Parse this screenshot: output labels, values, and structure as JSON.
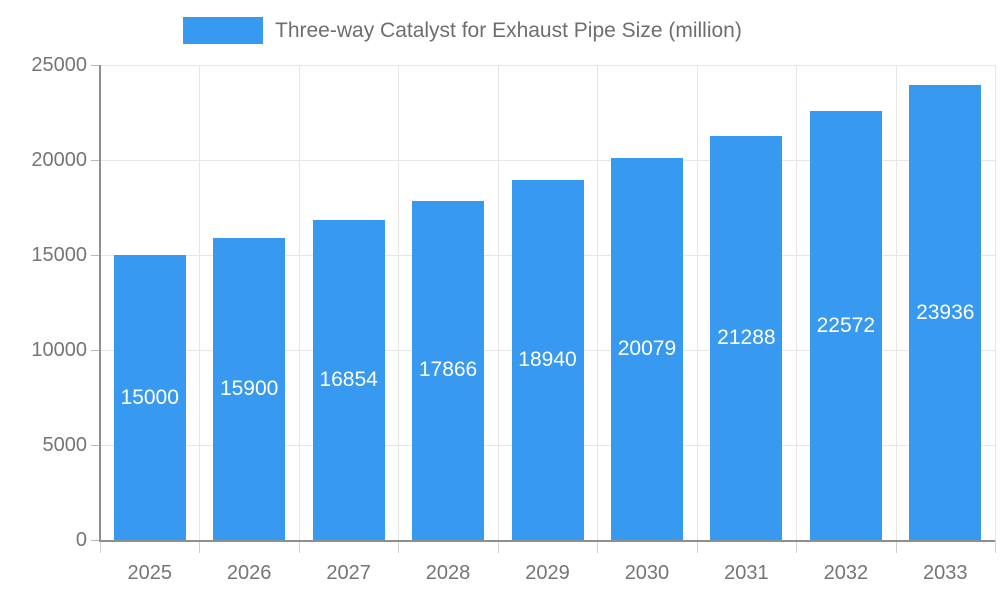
{
  "chart_data": {
    "type": "bar",
    "title": "Three-way Catalyst for Exhaust Pipe Size (million)",
    "legend_entries": [
      "Three-way Catalyst for Exhaust Pipe Size (million)"
    ],
    "legend_position": "top",
    "categories": [
      "2025",
      "2026",
      "2027",
      "2028",
      "2029",
      "2030",
      "2031",
      "2032",
      "2033"
    ],
    "values": [
      15000,
      15900,
      16854,
      17866,
      18940,
      20079,
      21288,
      22572,
      23936
    ],
    "xlabel": "",
    "ylabel": "",
    "ylim": [
      0,
      25000
    ],
    "yticks": [
      0,
      5000,
      10000,
      15000,
      20000,
      25000
    ],
    "grid": true,
    "value_labels_shown": true,
    "colors": {
      "bar": "#3899F0",
      "bar_value_label": "#FFFFFF",
      "axis_line": "#8F8F8F",
      "gridline": "#E6E6E6",
      "tick_label": "#757575",
      "legend_text": "#6E6E6E",
      "background": "#FFFFFF"
    }
  }
}
